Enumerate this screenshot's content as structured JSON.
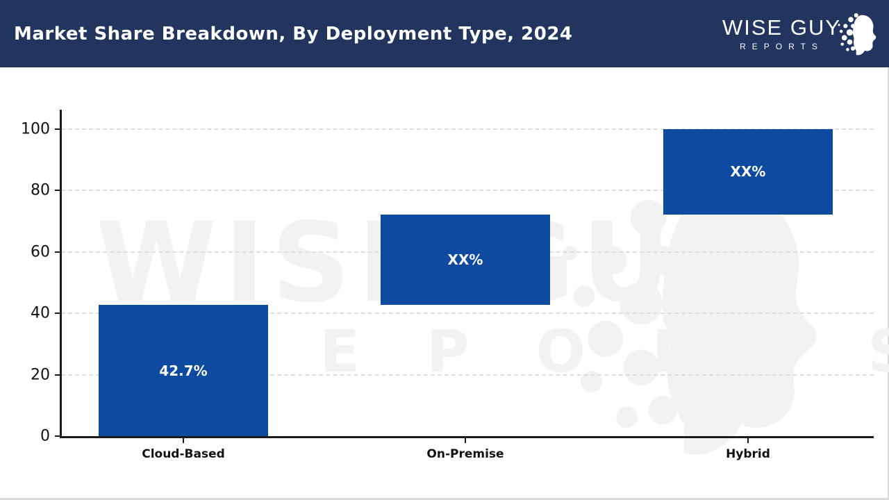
{
  "header": {
    "title": "Market Share Breakdown, By Deployment Type, 2024",
    "logo": {
      "line1": "WISE GUY",
      "line2": "REPORTS"
    }
  },
  "watermark": {
    "line1": "WISE GUY",
    "line2": "REPORTS"
  },
  "chart_data": {
    "type": "bar",
    "subtype": "floating-segment-waterfall",
    "title": "Market Share Breakdown, By Deployment Type, 2024",
    "categories": [
      "Cloud-Based",
      "On-Premise",
      "Hybrid"
    ],
    "segments": [
      {
        "category": "Cloud-Based",
        "start": 0,
        "end": 42.7,
        "label": "42.7%"
      },
      {
        "category": "On-Premise",
        "start": 42.7,
        "end": 72.2,
        "label": "XX%"
      },
      {
        "category": "Hybrid",
        "start": 72.2,
        "end": 100,
        "label": "XX%"
      }
    ],
    "yticks": [
      0,
      20,
      40,
      60,
      80,
      100
    ],
    "ylim": [
      0,
      100
    ],
    "xlabel": "",
    "ylabel": "",
    "grid": "horizontal-dashed",
    "legend": "none"
  },
  "colors": {
    "header_bg": "#22355f",
    "bar": "#0d4aa0",
    "bar_label": "#ffffff",
    "grid": "#dedede",
    "axis": "#1a1a1a",
    "watermark": "#f2f2f3",
    "frame": "#d9d9d9"
  }
}
